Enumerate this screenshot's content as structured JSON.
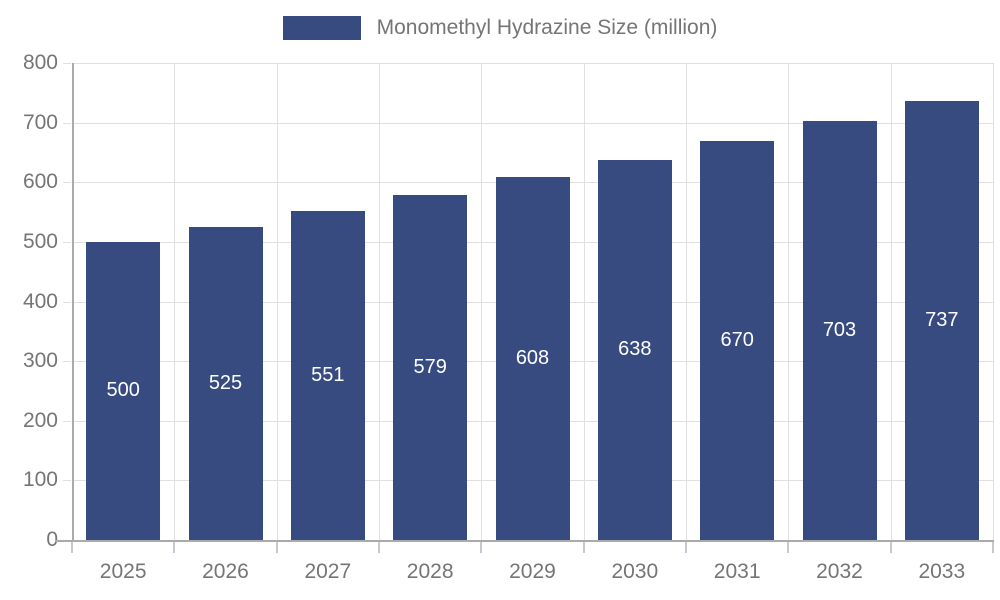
{
  "page": {
    "background": "#ffffff"
  },
  "chart_data": {
    "type": "bar",
    "title": "",
    "categories": [
      "2025",
      "2026",
      "2027",
      "2028",
      "2029",
      "2030",
      "2031",
      "2032",
      "2033"
    ],
    "series": [
      {
        "name": "Monomethyl Hydrazine Size (million)",
        "values": [
          500,
          525,
          551,
          579,
          608,
          638,
          670,
          703,
          737
        ]
      }
    ],
    "xlabel": "",
    "ylabel": "",
    "ylim": [
      0,
      800
    ],
    "ytick_step": 100,
    "ytick_labels": [
      "0",
      "100",
      "200",
      "300",
      "400",
      "500",
      "600",
      "700",
      "800"
    ],
    "grid": true,
    "legend_position": "top-center",
    "bar_color": "#374b80",
    "bar_label_color": "#ffffff",
    "axis_text_color": "#757575",
    "gridline_color": "#e0e0e0",
    "axis_line_color": "#aaaaaa",
    "tick_color": "#c4c9d2"
  }
}
